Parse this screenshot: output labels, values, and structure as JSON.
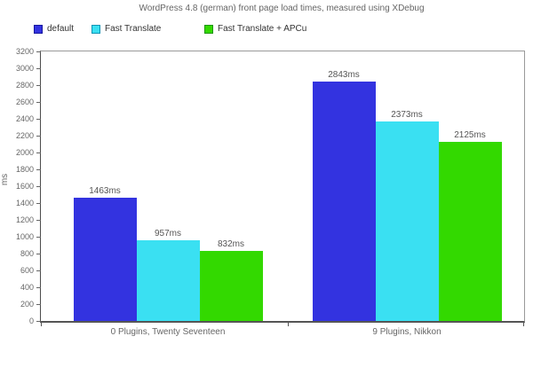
{
  "chart_data": {
    "type": "bar",
    "title": "WordPress 4.8 (german) front page load times, measured using XDebug",
    "xlabel": "",
    "ylabel": "ms",
    "unit": "ms",
    "categories": [
      "0 Plugins, Twenty Seventeen",
      "9 Plugins, Nikkon"
    ],
    "series": [
      {
        "name": "default",
        "color": "#3333e0",
        "border_color": "#14149e",
        "values": [
          1463,
          2843
        ]
      },
      {
        "name": "Fast Translate",
        "color": "#3ae0f2",
        "border_color": "#0f93b4",
        "values": [
          957,
          2373
        ]
      },
      {
        "name": "Fast Translate + APCu",
        "color": "#33d900",
        "border_color": "#1d9402",
        "values": [
          832,
          2125
        ]
      }
    ],
    "ylim": [
      0,
      3200
    ],
    "ytick_step": 200,
    "grid": false,
    "legend_position": "top-left",
    "value_labels": true,
    "background": "#ffffff"
  }
}
